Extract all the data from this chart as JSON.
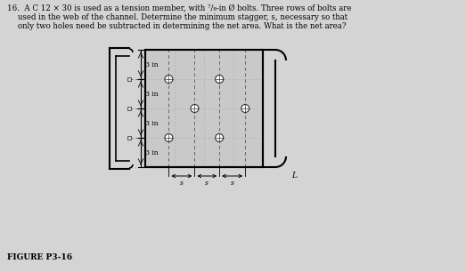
{
  "figure_label": "FIGURE P3-16",
  "bg_color": "#d4d4d4",
  "row_labels": [
    "3 in",
    "3 in",
    "3 in",
    "3 in"
  ],
  "spacing_labels": [
    "s",
    "s",
    "s"
  ],
  "text_line1": "16.  A C 12 × 30 is used as a tension member, with ⁷/₈-in Ø bolts. Three rows of bolts are",
  "text_line2": "used in the web of the channel. Determine the minimum stagger, s, necessary so that",
  "text_line3": "only two holes need be subtracted in determining the net area. What is the net area?"
}
